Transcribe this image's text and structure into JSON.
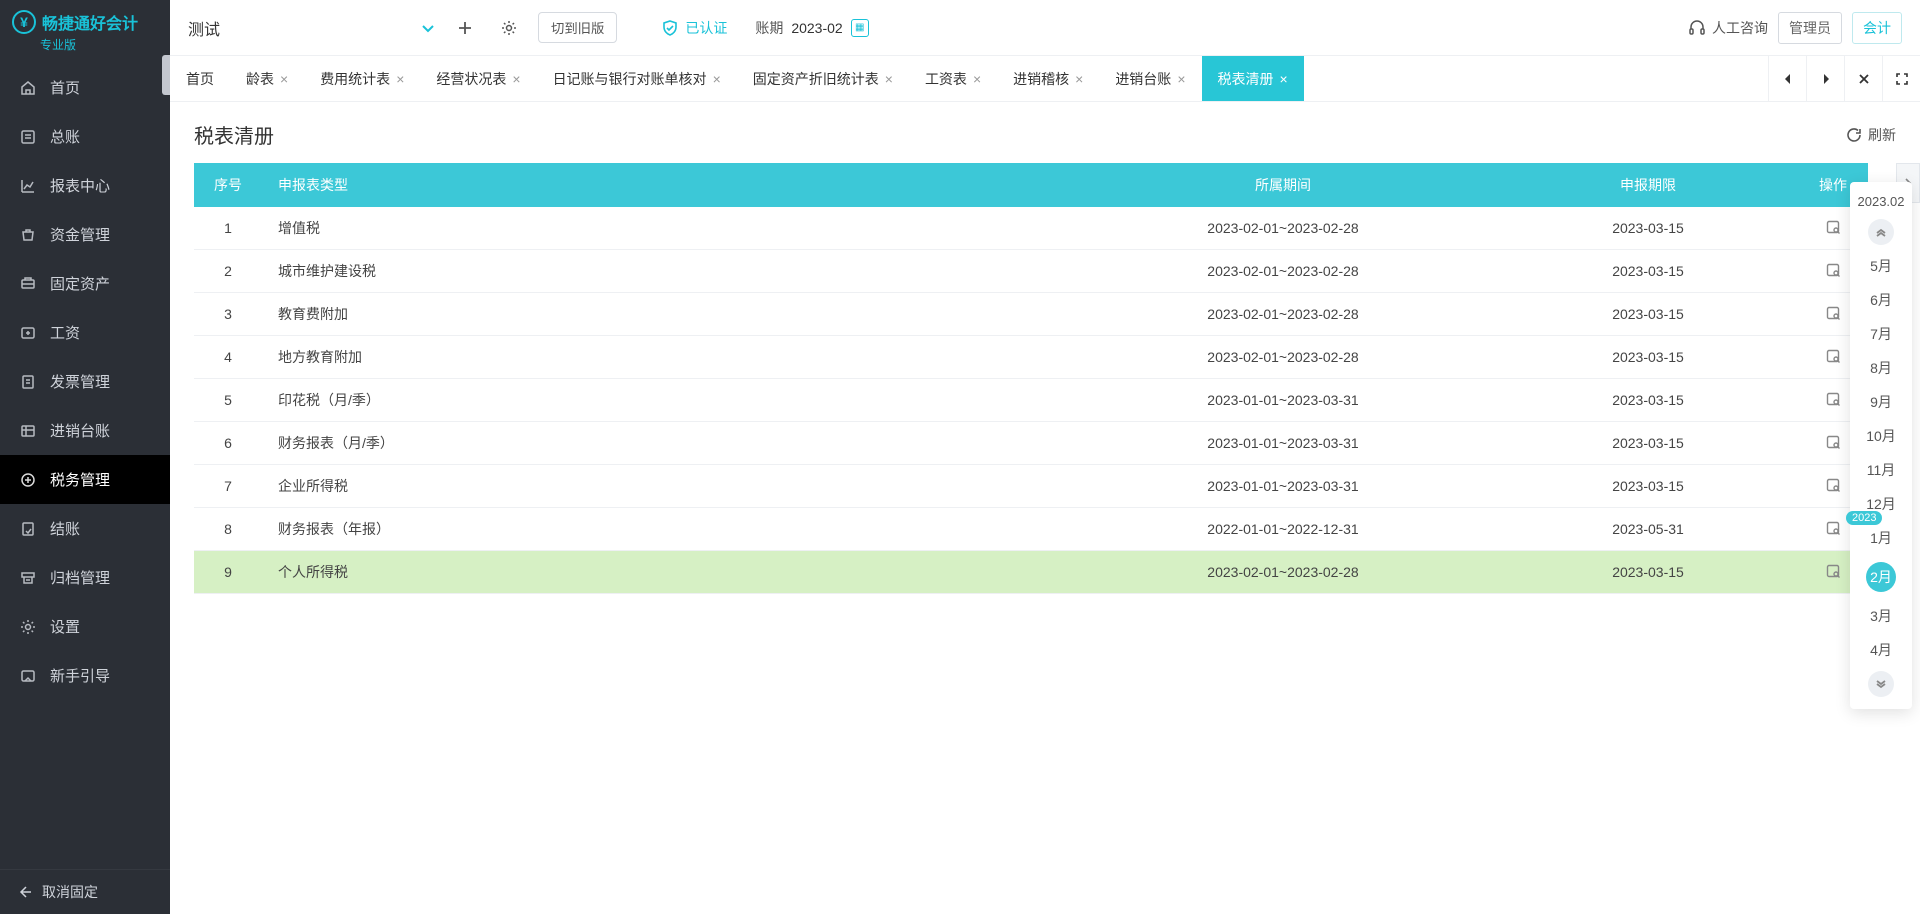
{
  "brand": {
    "name": "畅捷通好会计",
    "edition": "专业版",
    "logo_mark": "¥"
  },
  "sidebar": {
    "items": [
      {
        "label": "首页",
        "icon": "home"
      },
      {
        "label": "总账",
        "icon": "ledger"
      },
      {
        "label": "报表中心",
        "icon": "chart"
      },
      {
        "label": "资金管理",
        "icon": "funds"
      },
      {
        "label": "固定资产",
        "icon": "asset"
      },
      {
        "label": "工资",
        "icon": "payroll"
      },
      {
        "label": "发票管理",
        "icon": "invoice"
      },
      {
        "label": "进销台账",
        "icon": "inout"
      },
      {
        "label": "税务管理",
        "icon": "tax",
        "active": true
      },
      {
        "label": "结账",
        "icon": "close"
      },
      {
        "label": "归档管理",
        "icon": "archive"
      },
      {
        "label": "设置",
        "icon": "gear"
      },
      {
        "label": "新手引导",
        "icon": "guide"
      }
    ],
    "pin_label": "取消固定"
  },
  "topbar": {
    "company": "测试",
    "old_version_btn": "切到旧版",
    "verified_label": "已认证",
    "period_label": "账期",
    "period_value": "2023-02",
    "consult_label": "人工咨询",
    "role_admin": "管理员",
    "role_acc": "会计"
  },
  "tabs": {
    "items": [
      {
        "label": "首页",
        "closable": false
      },
      {
        "label": "龄表",
        "closable": true
      },
      {
        "label": "费用统计表",
        "closable": true
      },
      {
        "label": "经营状况表",
        "closable": true
      },
      {
        "label": "日记账与银行对账单核对",
        "closable": true
      },
      {
        "label": "固定资产折旧统计表",
        "closable": true
      },
      {
        "label": "工资表",
        "closable": true
      },
      {
        "label": "进销稽核",
        "closable": true
      },
      {
        "label": "进销台账",
        "closable": true
      },
      {
        "label": "税表清册",
        "closable": true,
        "active": true
      }
    ]
  },
  "page": {
    "title": "税表清册",
    "refresh_label": "刷新"
  },
  "table": {
    "columns": {
      "idx": "序号",
      "type": "申报表类型",
      "period": "所属期间",
      "due": "申报期限",
      "op": "操作"
    },
    "rows": [
      {
        "idx": "1",
        "type": "增值税",
        "period": "2023-02-01~2023-02-28",
        "due": "2023-03-15"
      },
      {
        "idx": "2",
        "type": "城市维护建设税",
        "period": "2023-02-01~2023-02-28",
        "due": "2023-03-15"
      },
      {
        "idx": "3",
        "type": "教育费附加",
        "period": "2023-02-01~2023-02-28",
        "due": "2023-03-15"
      },
      {
        "idx": "4",
        "type": "地方教育附加",
        "period": "2023-02-01~2023-02-28",
        "due": "2023-03-15"
      },
      {
        "idx": "5",
        "type": "印花税（月/季）",
        "period": "2023-01-01~2023-03-31",
        "due": "2023-03-15"
      },
      {
        "idx": "6",
        "type": "财务报表（月/季）",
        "period": "2023-01-01~2023-03-31",
        "due": "2023-03-15"
      },
      {
        "idx": "7",
        "type": "企业所得税",
        "period": "2023-01-01~2023-03-31",
        "due": "2023-03-15"
      },
      {
        "idx": "8",
        "type": "财务报表（年报）",
        "period": "2022-01-01~2022-12-31",
        "due": "2023-05-31"
      },
      {
        "idx": "9",
        "type": "个人所得税",
        "period": "2023-02-01~2023-02-28",
        "due": "2023-03-15",
        "highlight": true
      }
    ]
  },
  "month_rail": {
    "head": "2023.02",
    "year_badge": "2023",
    "months": [
      {
        "label": "5月"
      },
      {
        "label": "6月"
      },
      {
        "label": "7月"
      },
      {
        "label": "8月"
      },
      {
        "label": "9月"
      },
      {
        "label": "10月"
      },
      {
        "label": "11月"
      },
      {
        "label": "12月"
      },
      {
        "label": "1月",
        "year_start": true
      },
      {
        "label": "2月",
        "current": true
      },
      {
        "label": "3月"
      },
      {
        "label": "4月"
      }
    ]
  },
  "colors": {
    "accent": "#3cc8d7",
    "accent2": "#19c2d8",
    "sidebar_bg": "#2b2f36",
    "row_highlight": "#d6f0c4"
  }
}
